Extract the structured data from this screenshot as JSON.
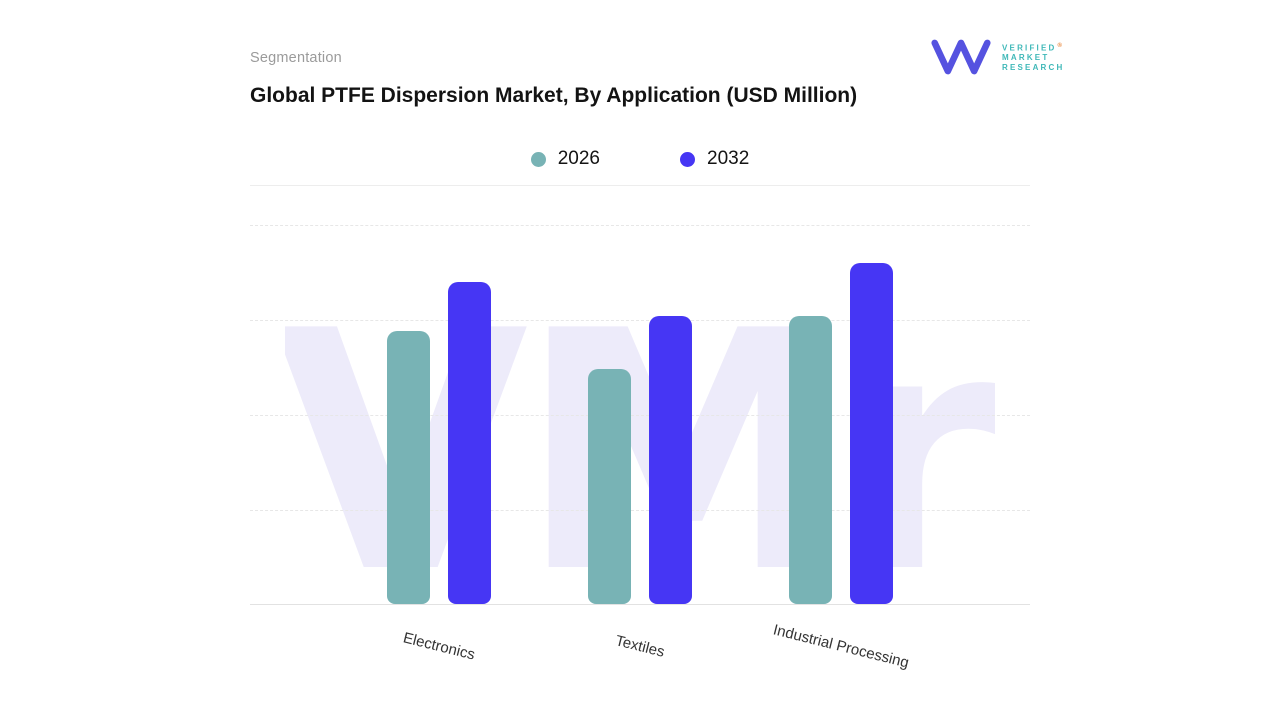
{
  "header": {
    "eyebrow": "Segmentation",
    "title": "Global PTFE Dispersion Market, By Application (USD Million)"
  },
  "logo": {
    "lines": [
      "VERIFIED",
      "MARKET",
      "RESEARCH"
    ],
    "registered_symbol": "®",
    "mark_color": "#5552e0",
    "text_color": "#3fb8b8"
  },
  "legend": [
    {
      "label": "2026",
      "color": "#78b3b5"
    },
    {
      "label": "2032",
      "color": "#4636f4"
    }
  ],
  "watermark_text": "VMr",
  "chart_data": {
    "type": "bar",
    "title": "Global PTFE Dispersion Market, By Application (USD Million)",
    "categories": [
      "Electronics",
      "Textiles",
      "Industrial Processing"
    ],
    "series": [
      {
        "name": "2026",
        "color": "#78b3b5",
        "values": [
          72,
          62,
          76
        ]
      },
      {
        "name": "2032",
        "color": "#4636f4",
        "values": [
          85,
          76,
          90
        ]
      }
    ],
    "ylim": [
      0,
      100
    ],
    "grid": "dashed-horizontal",
    "legend_position": "top-center",
    "xlabel": "",
    "ylabel": ""
  }
}
